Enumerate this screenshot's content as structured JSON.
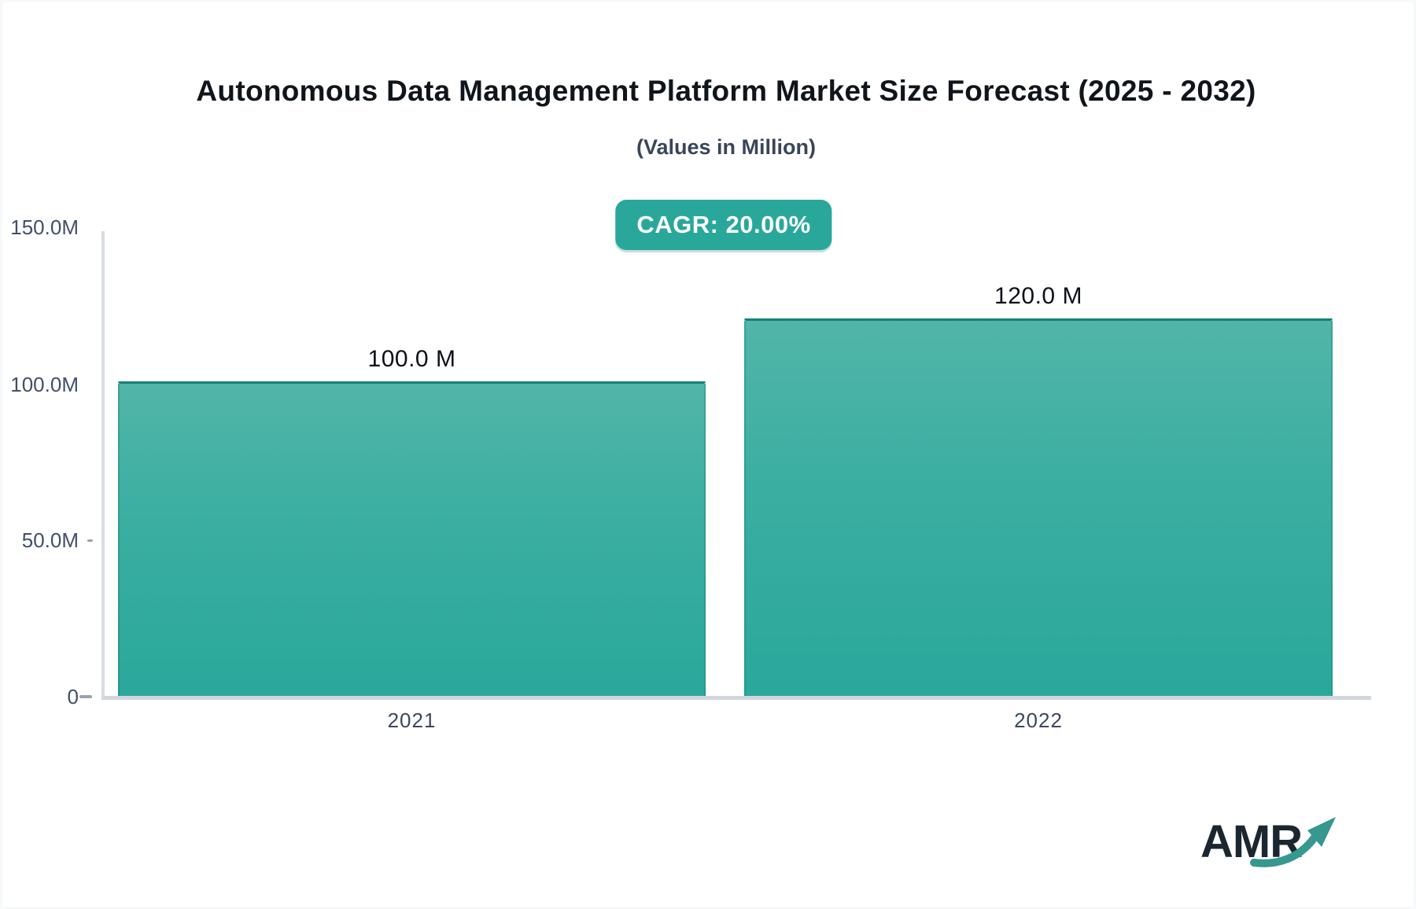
{
  "header": {
    "title": "Autonomous Data Management Platform Market Size Forecast (2025 - 2032)",
    "subtitle": "(Values in Million)"
  },
  "badge": {
    "label": "CAGR: 20.00%"
  },
  "chart_data": {
    "type": "bar",
    "title": "Autonomous Data Management Platform Market Size Forecast (2025 - 2032)",
    "subtitle": "(Values in Million)",
    "unit": "Million",
    "cagr_percent": "20.00%",
    "categories": [
      "2021",
      "2022"
    ],
    "values": [
      100.0,
      120.0
    ],
    "value_labels": [
      "100.0 M",
      "120.0 M"
    ],
    "xlabel": "",
    "ylabel": "",
    "ylim": [
      0,
      150
    ],
    "yticks": [
      {
        "value": 150,
        "label": "150.0M"
      },
      {
        "value": 100,
        "label": "100.0M"
      },
      {
        "value": 50,
        "label": "50.0M"
      },
      {
        "value": 0,
        "label": "0"
      }
    ],
    "grid": false,
    "legend": false
  },
  "logo": {
    "text": "AMR"
  },
  "colors": {
    "accent_teal": "#2aa79b",
    "bar_gradient_top": "#52b5a9",
    "bar_gradient_bottom": "#2aa89b",
    "bar_top_border": "#157f77",
    "axis_line": "#d5d8df",
    "tick": "#99a2b2",
    "title_text": "#10151b",
    "subtitle_text": "#39455a",
    "axis_label_text": "#41506a",
    "value_label_text": "#0c1117",
    "badge_text": "#ffffff",
    "logo_text": "#1b2630",
    "logo_arrow": "#36988f"
  }
}
